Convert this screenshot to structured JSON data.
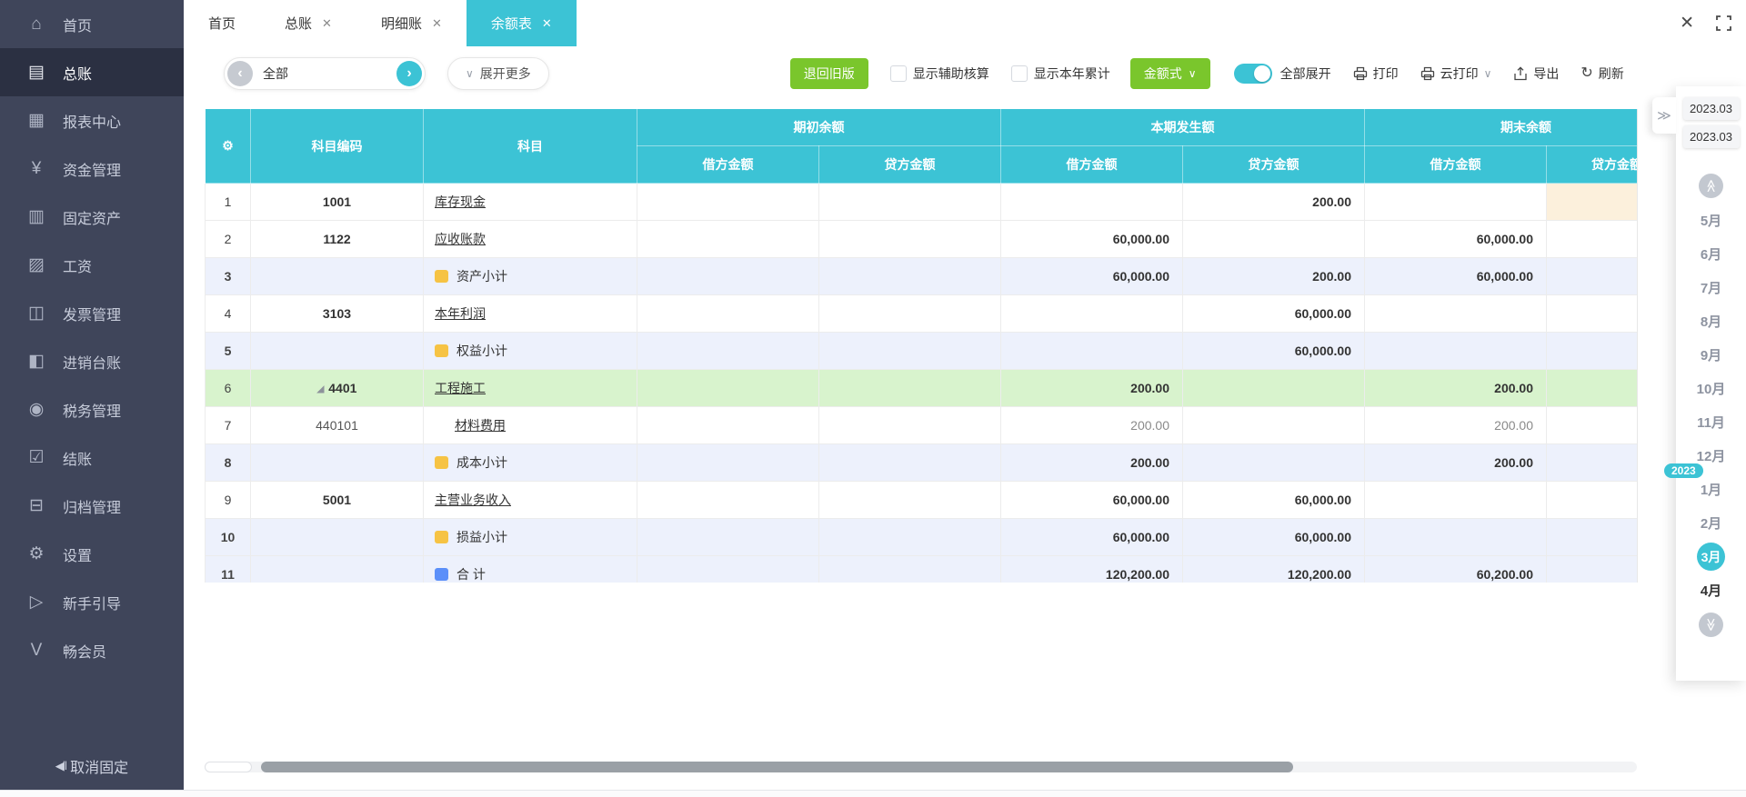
{
  "icons": {
    "gear": "⚙",
    "close": "✕",
    "chevron_down": "∨",
    "double_chevron": "≫",
    "arrow_left": "‹",
    "arrow_right": "›",
    "expand_triangle": "◢",
    "unpin_arrow": "◀‖",
    "refresh": "↻"
  },
  "sidebar": {
    "active_index": 1,
    "unpin_label": "取消固定",
    "items": [
      {
        "id": "home",
        "label": "首页",
        "glyph": "⌂"
      },
      {
        "id": "general-ledger",
        "label": "总账",
        "glyph": "▤"
      },
      {
        "id": "report-center",
        "label": "报表中心",
        "glyph": "▦"
      },
      {
        "id": "funds-management",
        "label": "资金管理",
        "glyph": "¥"
      },
      {
        "id": "fixed-assets",
        "label": "固定资产",
        "glyph": "▥"
      },
      {
        "id": "payroll",
        "label": "工资",
        "glyph": "▨"
      },
      {
        "id": "invoice-management",
        "label": "发票管理",
        "glyph": "◫"
      },
      {
        "id": "purchase-sale-ledger",
        "label": "进销台账",
        "glyph": "◧"
      },
      {
        "id": "tax-management",
        "label": "税务管理",
        "glyph": "◉"
      },
      {
        "id": "closing",
        "label": "结账",
        "glyph": "☑"
      },
      {
        "id": "archive-management",
        "label": "归档管理",
        "glyph": "⊟"
      },
      {
        "id": "settings",
        "label": "设置",
        "glyph": "⚙"
      },
      {
        "id": "beginner-guide",
        "label": "新手引导",
        "glyph": "▷"
      },
      {
        "id": "member",
        "label": "畅会员",
        "glyph": "V"
      }
    ]
  },
  "tabs": [
    {
      "id": "home",
      "label": "首页",
      "closable": false,
      "active": false
    },
    {
      "id": "general-ledger",
      "label": "总账",
      "closable": true,
      "active": false
    },
    {
      "id": "detail-ledger",
      "label": "明细账",
      "closable": true,
      "active": false
    },
    {
      "id": "balance-sheet",
      "label": "余额表",
      "closable": true,
      "active": true
    }
  ],
  "toolbar": {
    "subject_filter": "全部",
    "expand_more": "展开更多",
    "back_to_old": "退回旧版",
    "show_aux": "显示辅助核算",
    "show_ytd": "显示本年累计",
    "amount_style": "金额式",
    "expand_all": "全部展开",
    "print": "打印",
    "cloud_print": "云打印",
    "export": "导出",
    "refresh": "刷新"
  },
  "table": {
    "columns": {
      "code": "科目编码",
      "subject": "科目",
      "debit": "借方金额",
      "credit": "贷方金额"
    },
    "groups": {
      "opening": "期初余额",
      "current": "本期发生额",
      "ending": "期末余额"
    },
    "rows": [
      {
        "num": "1",
        "code": "1001",
        "name": "库存现金",
        "link": true,
        "style": "white",
        "cream": 5,
        "v": [
          "",
          "",
          "",
          "200.00",
          "",
          ""
        ]
      },
      {
        "num": "2",
        "code": "1122",
        "name": "应收账款",
        "link": true,
        "style": "white",
        "v": [
          "",
          "",
          "60,000.00",
          "",
          "60,000.00",
          ""
        ]
      },
      {
        "num": "3",
        "code": "",
        "icon": "yellow",
        "name": "资产小计",
        "style": "lavender",
        "v": [
          "",
          "",
          "60,000.00",
          "200.00",
          "60,000.00",
          ""
        ]
      },
      {
        "num": "4",
        "code": "3103",
        "name": "本年利润",
        "link": true,
        "style": "white",
        "v": [
          "",
          "",
          "",
          "60,000.00",
          "",
          ""
        ]
      },
      {
        "num": "5",
        "code": "",
        "icon": "yellow",
        "name": "权益小计",
        "style": "lavender",
        "v": [
          "",
          "",
          "",
          "60,000.00",
          "",
          ""
        ]
      },
      {
        "num": "6",
        "code": "4401",
        "tri": true,
        "name": "工程施工",
        "link": true,
        "style": "green",
        "v": [
          "",
          "",
          "200.00",
          "",
          "200.00",
          ""
        ]
      },
      {
        "num": "7",
        "code": "440101",
        "name": "材料费用",
        "link": true,
        "indent": true,
        "muted": true,
        "style": "white",
        "v": [
          "",
          "",
          "200.00",
          "",
          "200.00",
          ""
        ]
      },
      {
        "num": "8",
        "code": "",
        "icon": "yellow",
        "name": "成本小计",
        "style": "lavender",
        "v": [
          "",
          "",
          "200.00",
          "",
          "200.00",
          ""
        ]
      },
      {
        "num": "9",
        "code": "5001",
        "name": "主营业务收入",
        "link": true,
        "style": "white",
        "v": [
          "",
          "",
          "60,000.00",
          "60,000.00",
          "",
          ""
        ]
      },
      {
        "num": "10",
        "code": "",
        "icon": "yellow",
        "name": "损益小计",
        "style": "lavender",
        "v": [
          "",
          "",
          "60,000.00",
          "60,000.00",
          "",
          ""
        ]
      },
      {
        "num": "11",
        "code": "",
        "icon": "blue",
        "name": "合 计",
        "style": "lavender",
        "v": [
          "",
          "",
          "120,200.00",
          "120,200.00",
          "60,200.00",
          ""
        ]
      }
    ]
  },
  "month_rail": {
    "periods": [
      "2023.03",
      "2023.03"
    ],
    "months": [
      {
        "label": "5月"
      },
      {
        "label": "6月"
      },
      {
        "label": "7月"
      },
      {
        "label": "8月"
      },
      {
        "label": "9月"
      },
      {
        "label": "10月"
      },
      {
        "label": "11月"
      },
      {
        "label": "12月"
      },
      {
        "label": "1月",
        "badge": "2023"
      },
      {
        "label": "2月"
      },
      {
        "label": "3月",
        "selected": true
      },
      {
        "label": "4月",
        "emph": true
      }
    ]
  }
}
